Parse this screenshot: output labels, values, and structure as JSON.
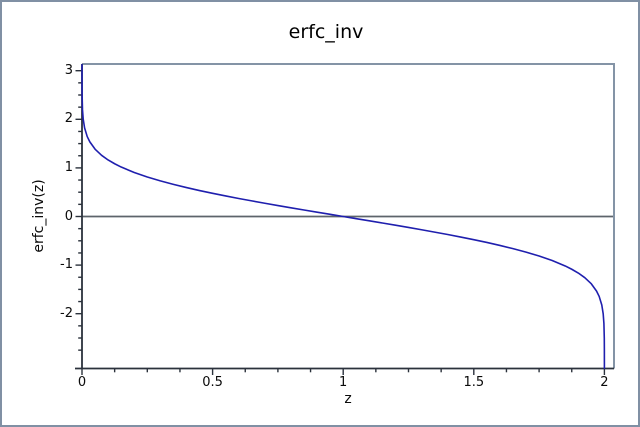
{
  "figure": {
    "title": "erfc_inv"
  },
  "chart_data": {
    "type": "line",
    "title": "erfc_inv",
    "xlabel": "z",
    "ylabel": "erfc_inv(z)",
    "xlim": [
      0,
      2.04
    ],
    "ylim": [
      -3.13,
      3.14
    ],
    "grid": false,
    "legend": null,
    "zero_line_y": 0,
    "x_axis": {
      "major_values": [
        0,
        0.5,
        1,
        1.5,
        2
      ],
      "major_labels": [
        "0",
        "0.5",
        "1",
        "1.5",
        "2"
      ],
      "minor_step": 0.125
    },
    "y_axis": {
      "major_values": [
        3,
        2,
        1,
        0,
        -1,
        -2
      ],
      "major_labels": [
        "3",
        "2",
        "1",
        "0",
        "-1",
        "-2"
      ],
      "minor_step": 0.25
    },
    "colors": {
      "curve": "#1f1fae",
      "axis": "#2b323c",
      "frame": "#8494a6",
      "zero_line": "#5d646b",
      "window_border": "#8090a4",
      "text": "#000000"
    },
    "series": [
      {
        "name": "erfc_inv(z)",
        "color": "#1f1fae",
        "x": [
          1e-05,
          2.21e-05,
          0.0001006,
          0.000407,
          0.001863,
          0.00468,
          0.01,
          0.02,
          0.03,
          0.05,
          0.075,
          0.1,
          0.125,
          0.15,
          0.2,
          0.25,
          0.3,
          0.35,
          0.4,
          0.45,
          0.5,
          0.55,
          0.6,
          0.65,
          0.7,
          0.75,
          0.8,
          0.85,
          0.9,
          0.95,
          1.0,
          1.05,
          1.1,
          1.15,
          1.2,
          1.25,
          1.3,
          1.35,
          1.4,
          1.45,
          1.5,
          1.55,
          1.6,
          1.65,
          1.7,
          1.75,
          1.8,
          1.85,
          1.875,
          1.9,
          1.925,
          1.95,
          1.97,
          1.98,
          1.99,
          1.99532,
          1.998137,
          1.999593,
          1.9998994,
          1.9999779,
          1.99999
        ],
        "y": [
          3.1234,
          3.0,
          2.75,
          2.5,
          2.2,
          2.0,
          1.8214,
          1.645,
          1.535,
          1.3859,
          1.2595,
          1.1631,
          1.0853,
          1.0179,
          0.9062,
          0.8134,
          0.7329,
          0.6611,
          0.5951,
          0.5342,
          0.4769,
          0.4227,
          0.3708,
          0.3209,
          0.2725,
          0.2253,
          0.1791,
          0.1337,
          0.0889,
          0.0443,
          0.0,
          -0.0443,
          -0.0889,
          -0.1337,
          -0.1791,
          -0.2253,
          -0.2725,
          -0.3209,
          -0.3708,
          -0.4227,
          -0.4769,
          -0.5342,
          -0.5951,
          -0.6611,
          -0.7329,
          -0.8134,
          -0.9062,
          -1.0179,
          -1.0853,
          -1.1631,
          -1.2595,
          -1.3859,
          -1.535,
          -1.645,
          -1.8214,
          -2.0,
          -2.2,
          -2.5,
          -2.75,
          -3.0,
          -3.1234
        ]
      }
    ]
  }
}
